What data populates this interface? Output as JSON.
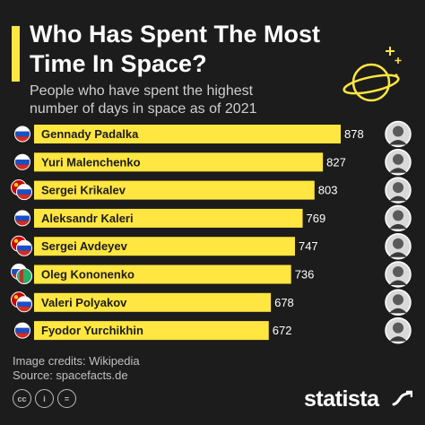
{
  "title": "Who Has Spent The Most Time In Space?",
  "subtitle": "People who have spent the highest number of days in space as of 2021",
  "credits": {
    "image": "Image credits: Wikipedia",
    "source": "Source: spacefacts.de"
  },
  "license_icons": [
    "cc",
    "i",
    "="
  ],
  "brand": "statista",
  "colors": {
    "background": "#1c1c1c",
    "bar": "#ffe640",
    "text": "#ffffff",
    "subtitle": "#cfcfcf"
  },
  "chart_data": {
    "type": "bar",
    "orientation": "horizontal",
    "categories": [
      "Gennady Padalka",
      "Yuri Malenchenko",
      "Sergei Krikalev",
      "Aleksandr Kaleri",
      "Sergei Avdeyev",
      "Oleg Kononenko",
      "Valeri Polyakov",
      "Fyodor Yurchikhin"
    ],
    "values": [
      878,
      827,
      803,
      769,
      747,
      736,
      678,
      672
    ],
    "flags": [
      [
        "russia"
      ],
      [
        "russia"
      ],
      [
        "soviet-union",
        "russia"
      ],
      [
        "russia"
      ],
      [
        "soviet-union",
        "russia"
      ],
      [
        "russia",
        "turkmenistan"
      ],
      [
        "soviet-union",
        "russia"
      ],
      [
        "russia"
      ]
    ],
    "xlim": [
      0,
      878
    ],
    "title": "Who Has Spent The Most Time In Space?",
    "subtitle": "People who have spent the highest number of days in space as of 2021",
    "grid": false,
    "legend": "none"
  }
}
